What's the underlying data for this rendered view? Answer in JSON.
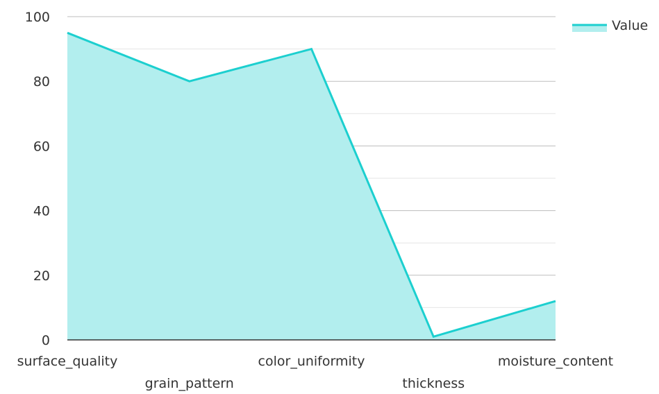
{
  "chart_data": {
    "type": "area",
    "categories": [
      "surface_quality",
      "grain_pattern",
      "color_uniformity",
      "thickness",
      "moisture_content"
    ],
    "series": [
      {
        "name": "Value",
        "values": [
          95,
          80,
          90,
          1,
          12
        ]
      }
    ],
    "ylim": [
      0,
      100
    ],
    "yticks": [
      "0",
      "20",
      "40",
      "60",
      "80",
      "100"
    ],
    "grid": true,
    "legend": {
      "position": "top-right"
    },
    "colors": {
      "line": "#1ccfcf",
      "fill": "#b2eeee",
      "grid_major": "#bdbdbd",
      "grid_minor": "#e6e6e6",
      "axis": "#333333"
    }
  }
}
